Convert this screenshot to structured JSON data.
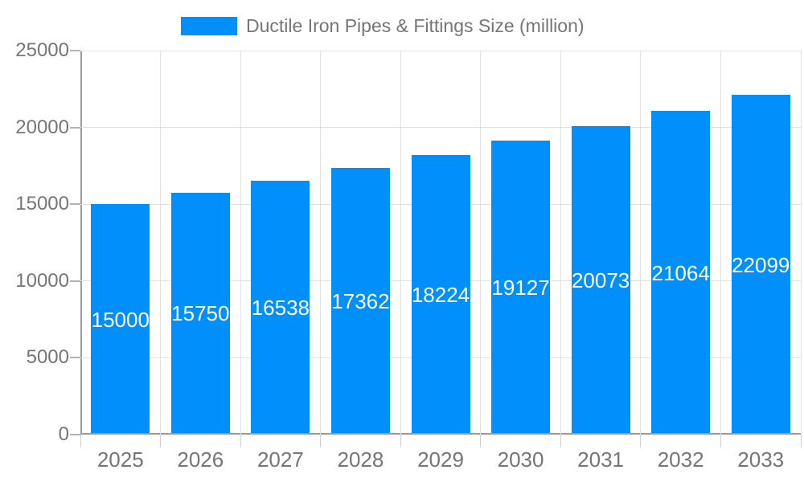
{
  "legend": {
    "label": "Ductile Iron Pipes & Fittings Size (million)"
  },
  "chart_data": {
    "type": "bar",
    "title": "",
    "categories": [
      "2025",
      "2026",
      "2027",
      "2028",
      "2029",
      "2030",
      "2031",
      "2032",
      "2033"
    ],
    "series": [
      {
        "name": "Ductile Iron Pipes & Fittings Size (million)",
        "values": [
          15000,
          15750,
          16538,
          17362,
          18224,
          19127,
          20073,
          21064,
          22099
        ]
      }
    ],
    "data_labels": [
      "15000",
      "15750",
      "16538",
      "17362",
      "18224",
      "19127",
      "20073",
      "21064",
      "22099"
    ],
    "xlabel": "",
    "ylabel": "",
    "ylim": [
      0,
      25000
    ],
    "y_ticks": [
      0,
      5000,
      10000,
      15000,
      20000,
      25000
    ],
    "y_tick_labels": [
      "0",
      "5000",
      "10000",
      "15000",
      "20000",
      "25000"
    ],
    "grid": true,
    "legend_position": "top-center",
    "data_label_position": "inside-center",
    "colors": {
      "bar": "#008FFB",
      "axis_line": "#9b9b9b",
      "gridline": "#e2e2e2",
      "axis_text": "#757575",
      "bar_label_text": "#ffffff",
      "background": "#ffffff"
    }
  }
}
